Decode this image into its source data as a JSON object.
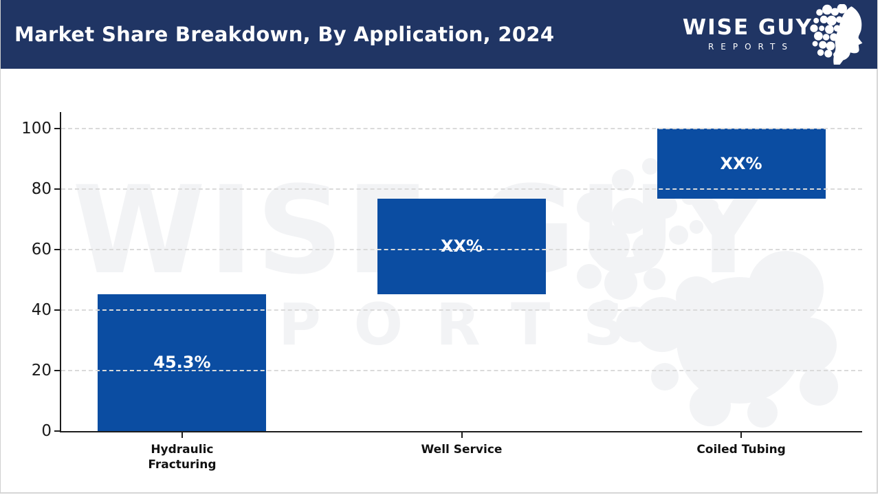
{
  "header": {
    "title": "Market Share Breakdown, By Application, 2024",
    "logo": {
      "brand_top": "WISE GUY",
      "brand_bottom": "REPORTS",
      "head_icon": "dotted-head-profile-icon"
    }
  },
  "watermark": {
    "line1": "WISE GUY",
    "line2": "REPORTS"
  },
  "chart_data": {
    "type": "bar",
    "variant": "floating-waterfall-segments",
    "title": "Market Share Breakdown, By Application, 2024",
    "categories": [
      "Hydraulic Fracturing",
      "Well Service",
      "Coiled Tubing"
    ],
    "categories_display": [
      "Hydraulic\nFracturing",
      "Well Service",
      "Coiled Tubing"
    ],
    "segments": [
      {
        "category": "Hydraulic Fracturing",
        "start": 0,
        "end": 45.3,
        "label": "45.3%"
      },
      {
        "category": "Well Service",
        "start": 45.3,
        "end": 76.8,
        "label": "XX%"
      },
      {
        "category": "Coiled Tubing",
        "start": 76.8,
        "end": 100,
        "label": "XX%"
      }
    ],
    "yticks": [
      0,
      20,
      40,
      60,
      80,
      100
    ],
    "ylim": [
      0,
      104
    ],
    "xlabel": "",
    "ylabel": "",
    "grid": "horizontal-dashed",
    "grid_above_bars": true,
    "legend": "none",
    "colors": {
      "bar": "#0b4da2",
      "bar_label": "#ffffff",
      "axis": "#1c1c1c",
      "gridline": "#dadada",
      "header_bg": "#203564",
      "header_text": "#ffffff",
      "watermark": "#f2f3f5"
    }
  }
}
